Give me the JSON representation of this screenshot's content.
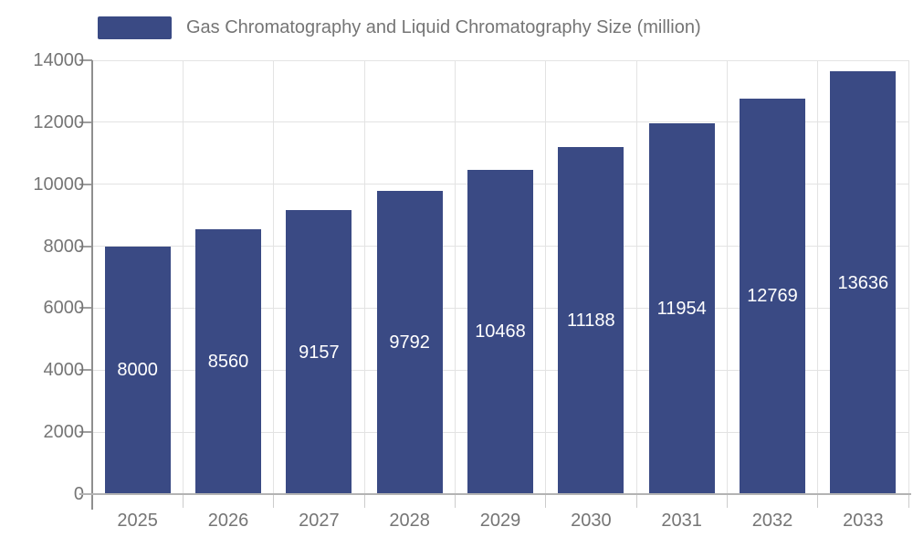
{
  "chart_data": {
    "type": "bar",
    "title": "",
    "legend": "Gas Chromatography and Liquid Chromatography Size (million)",
    "legend_position": "top",
    "categories": [
      "2025",
      "2026",
      "2027",
      "2028",
      "2029",
      "2030",
      "2031",
      "2032",
      "2033"
    ],
    "series": [
      {
        "name": "Gas Chromatography and Liquid Chromatography Size (million)",
        "values": [
          8000,
          8560,
          9157,
          9792,
          10468,
          11188,
          11954,
          12769,
          13636
        ]
      }
    ],
    "values": [
      8000,
      8560,
      9157,
      9792,
      10468,
      11188,
      11954,
      12769,
      13636
    ],
    "value_labels": [
      "8000",
      "8560",
      "9157",
      "9792",
      "10468",
      "11188",
      "11954",
      "12769",
      "13636"
    ],
    "ylim": [
      0,
      14000
    ],
    "yticks": [
      0,
      2000,
      4000,
      6000,
      8000,
      10000,
      12000,
      14000
    ],
    "xlabel": "",
    "ylabel": "",
    "grid": true,
    "colors": {
      "bar": "#3A4A84",
      "bar_value_label": "#ffffff",
      "axis_text": "#757575",
      "legend_text": "#757575",
      "grid_line": "#e3e3e3",
      "y_axis_line": "#8f8f8f",
      "x_axis_line": "#b3b3b3",
      "background": "#ffffff"
    }
  }
}
